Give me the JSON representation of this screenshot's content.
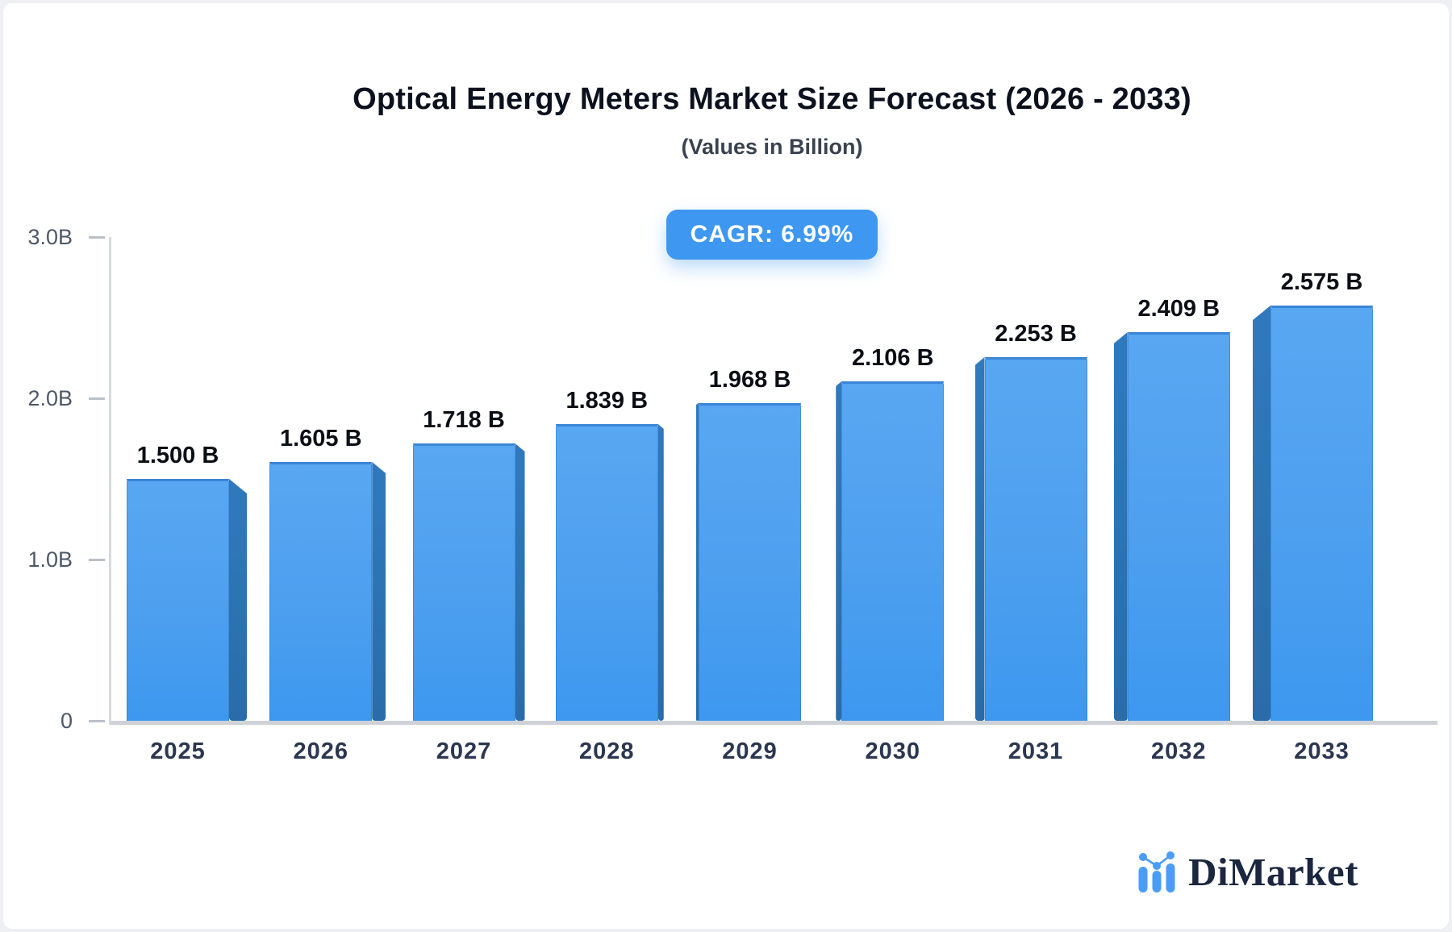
{
  "header": {
    "title": "Optical Energy Meters Market Size Forecast (2026 - 2033)",
    "subtitle": "(Values in Billion)",
    "cagr_badge": "CAGR: 6.99%"
  },
  "chart_data": {
    "type": "bar",
    "title": "Optical Energy Meters Market Size Forecast (2026 - 2033)",
    "subtitle": "(Values in Billion)",
    "annotation": "CAGR: 6.99%",
    "categories": [
      "2025",
      "2026",
      "2027",
      "2028",
      "2029",
      "2030",
      "2031",
      "2032",
      "2033"
    ],
    "values": [
      1.5,
      1.605,
      1.718,
      1.839,
      1.968,
      2.106,
      2.253,
      2.409,
      2.575
    ],
    "value_labels": [
      "1.500 B",
      "1.605 B",
      "1.718 B",
      "1.839 B",
      "1.968 B",
      "2.106 B",
      "2.253 B",
      "2.409 B",
      "2.575 B"
    ],
    "unit": "Billion",
    "ylim": [
      0,
      3.0
    ],
    "y_ticks": [
      {
        "label": "3.0B",
        "value": 3.0
      },
      {
        "label": "2.0B",
        "value": 2.0
      },
      {
        "label": "1.0B",
        "value": 1.0
      },
      {
        "label": "0",
        "value": 0.0
      }
    ],
    "grid": false,
    "legend": false,
    "bar_style": "3d-extruded",
    "colors": {
      "bar_front_top": "#58A7F2",
      "bar_front_bottom": "#3D98EF",
      "bar_top_edge": "#3A85D6",
      "bar_side": "#2C75B5",
      "axis_line": "#D7DAE0",
      "baseline": "#CED2D8",
      "tick_text": "#4D5867",
      "category_text": "#2B3750",
      "value_text": "#0B0E14",
      "badge_bg": "#3E97F0",
      "badge_text": "#FFFFFF"
    }
  },
  "footer": {
    "brand": "DiMarket",
    "logo_icon": "mini-bar-line-chart-icon",
    "brand_color": "#1B2740",
    "logo_accent": "#4A9CF6"
  }
}
